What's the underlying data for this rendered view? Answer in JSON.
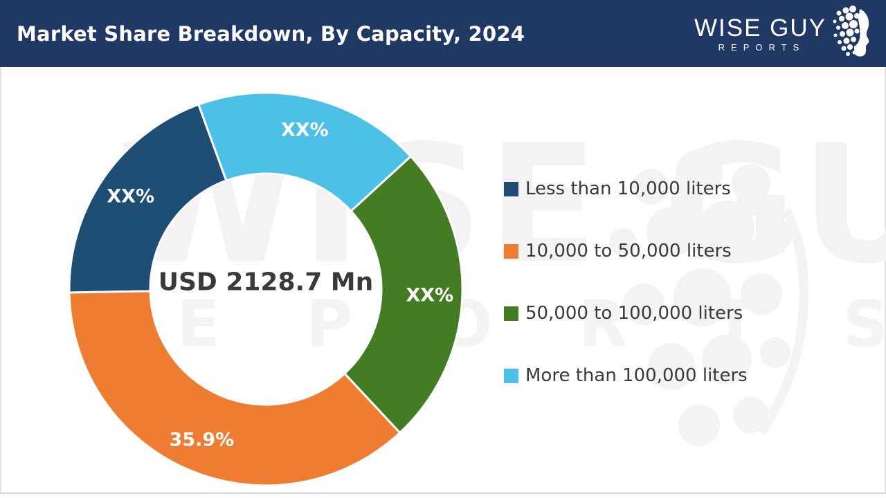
{
  "header": {
    "title": "Market Share Breakdown, By Capacity, 2024",
    "bg_color": "#1f3864",
    "logo": {
      "line1": "WISE GUY",
      "line2": "REPORTS"
    }
  },
  "watermark": {
    "line1": "WISE GU",
    "line2": "E P O R T S"
  },
  "chart_data": {
    "type": "pie",
    "variant": "donut",
    "title": "Market Share Breakdown, By Capacity, 2024",
    "center_label": "USD 2128.7 Mn",
    "legend_position": "right",
    "segments": [
      {
        "name": "Less than 10,000 liters",
        "display_label": "XX%",
        "value_pct": 19.7,
        "is_masked": true,
        "color": "#1f4e74",
        "start_deg": 269,
        "end_deg": 340
      },
      {
        "name": "More than 100,000 liters",
        "display_label": "XX%",
        "value_pct": 18.7,
        "is_masked": true,
        "color": "#4dc0e8",
        "start_deg": 340,
        "end_deg": 407.5
      },
      {
        "name": "50,000 to 100,000 liters",
        "display_label": "XX%",
        "value_pct": 24.9,
        "is_masked": true,
        "color": "#447c24",
        "start_deg": 47.5,
        "end_deg": 137
      },
      {
        "name": "10,000 to 50,000 liters",
        "display_label": "35.9%",
        "value_pct": 35.9,
        "is_masked": false,
        "color": "#ee7d31",
        "start_deg": 137,
        "end_deg": 269
      }
    ]
  },
  "legend": {
    "items": [
      {
        "label": "Less than 10,000 liters",
        "color": "#1f4e74"
      },
      {
        "label": "10,000 to 50,000 liters",
        "color": "#ee7d31"
      },
      {
        "label": "50,000 to 100,000 liters",
        "color": "#447c24"
      },
      {
        "label": "More than 100,000 liters",
        "color": "#4dc0e8"
      }
    ]
  }
}
